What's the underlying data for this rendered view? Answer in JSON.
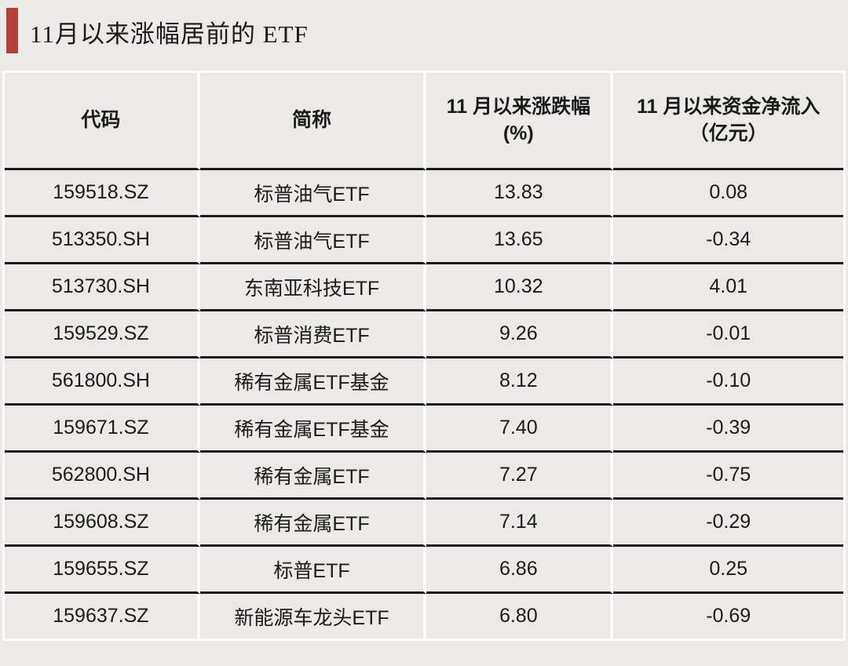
{
  "page": {
    "background_color": "#ECEAE6",
    "accent_color": "#B0423A",
    "grid_dark_color": "#1B1B1B",
    "grid_light_color": "#FCFCFC"
  },
  "title": {
    "text": "11月以来涨幅居前的 ETF"
  },
  "table": {
    "columns": [
      {
        "label": "代码",
        "label2": ""
      },
      {
        "label": "简称",
        "label2": ""
      },
      {
        "label": "11 月以来涨跌幅",
        "label2": "(%)"
      },
      {
        "label": "11 月以来资金净流入",
        "label2": "（亿元）"
      }
    ],
    "rows": [
      [
        "159518.SZ",
        "标普油气ETF",
        "13.83",
        "0.08"
      ],
      [
        "513350.SH",
        "标普油气ETF",
        "13.65",
        "-0.34"
      ],
      [
        "513730.SH",
        "东南亚科技ETF",
        "10.32",
        "4.01"
      ],
      [
        "159529.SZ",
        "标普消费ETF",
        "9.26",
        "-0.01"
      ],
      [
        "561800.SH",
        "稀有金属ETF基金",
        "8.12",
        "-0.10"
      ],
      [
        "159671.SZ",
        "稀有金属ETF基金",
        "7.40",
        "-0.39"
      ],
      [
        "562800.SH",
        "稀有金属ETF",
        "7.27",
        "-0.75"
      ],
      [
        "159608.SZ",
        "稀有金属ETF",
        "7.14",
        "-0.29"
      ],
      [
        "159655.SZ",
        "标普ETF",
        "6.86",
        "0.25"
      ],
      [
        "159637.SZ",
        "新能源车龙头ETF",
        "6.80",
        "-0.69"
      ]
    ]
  },
  "chart_data": {
    "type": "table",
    "title": "11月以来涨幅居前的 ETF",
    "columns": [
      "代码",
      "简称",
      "11 月以来涨跌幅(%)",
      "11 月以来资金净流入（亿元）"
    ],
    "rows": [
      {
        "code": "159518.SZ",
        "name": "标普油气ETF",
        "change_pct": 13.83,
        "net_inflow_100m": 0.08
      },
      {
        "code": "513350.SH",
        "name": "标普油气ETF",
        "change_pct": 13.65,
        "net_inflow_100m": -0.34
      },
      {
        "code": "513730.SH",
        "name": "东南亚科技ETF",
        "change_pct": 10.32,
        "net_inflow_100m": 4.01
      },
      {
        "code": "159529.SZ",
        "name": "标普消费ETF",
        "change_pct": 9.26,
        "net_inflow_100m": -0.01
      },
      {
        "code": "561800.SH",
        "name": "稀有金属ETF基金",
        "change_pct": 8.12,
        "net_inflow_100m": -0.1
      },
      {
        "code": "159671.SZ",
        "name": "稀有金属ETF基金",
        "change_pct": 7.4,
        "net_inflow_100m": -0.39
      },
      {
        "code": "562800.SH",
        "name": "稀有金属ETF",
        "change_pct": 7.27,
        "net_inflow_100m": -0.75
      },
      {
        "code": "159608.SZ",
        "name": "稀有金属ETF",
        "change_pct": 7.14,
        "net_inflow_100m": -0.29
      },
      {
        "code": "159655.SZ",
        "name": "标普ETF",
        "change_pct": 6.86,
        "net_inflow_100m": 0.25
      },
      {
        "code": "159637.SZ",
        "name": "新能源车龙头ETF",
        "change_pct": 6.8,
        "net_inflow_100m": -0.69
      }
    ]
  }
}
